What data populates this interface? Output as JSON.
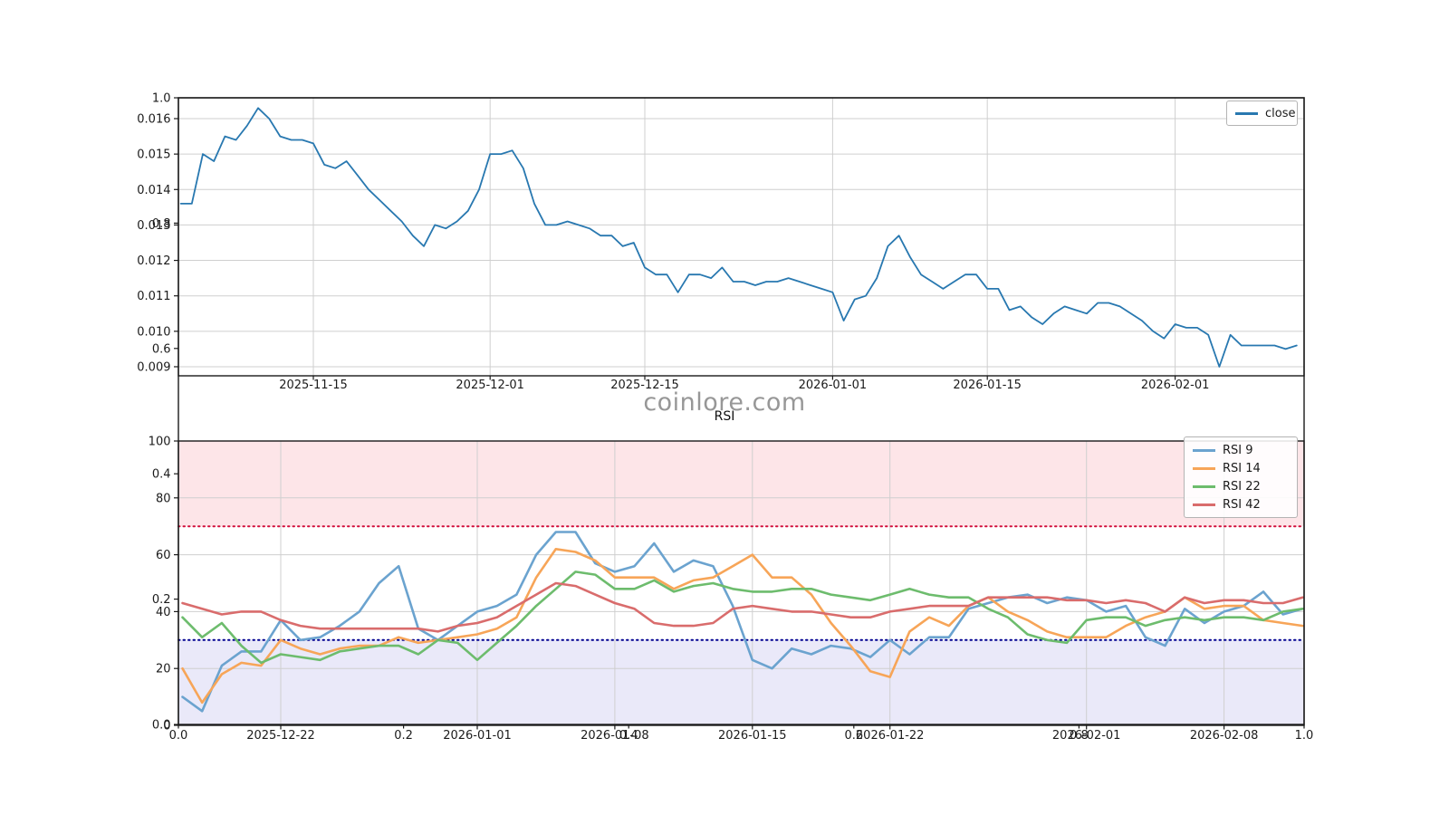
{
  "watermark": "coinlore.com",
  "rsi_title": "RSI",
  "overlay_axis": {
    "y_tick_labels": [
      "1.0",
      "0.8",
      "0.6",
      "0.4",
      "0.2",
      "0.0"
    ],
    "x_tick_labels": [
      "0.0",
      "0.2",
      "0.4",
      "0.6",
      "0.8",
      "1.0"
    ]
  },
  "colors": {
    "close_line": "#2878b0",
    "rsi9_line": "#6ba3cf",
    "rsi14_line": "#f7a558",
    "rsi22_line": "#6dbc6d",
    "rsi42_line": "#d96c6c",
    "overbought_band": "rgba(240,70,90,0.14)",
    "oversold_band": "rgba(90,85,210,0.13)",
    "overbought_dotted_line": "#d2103c",
    "oversold_dotted_line": "#000090",
    "gridline": "#cfcfcf",
    "spine": "#1a1a1a",
    "tick_text": "#1b1b1b"
  },
  "chart_data": [
    {
      "type": "line",
      "panel": "price",
      "title": "",
      "legend_position": "upper right",
      "grid": true,
      "start_date": "2025-11-03",
      "x_tick_labels": [
        "2025-11-15",
        "2025-12-01",
        "2025-12-15",
        "2026-01-01",
        "2026-01-15",
        "2026-02-01"
      ],
      "y_ticks": [
        {
          "value": 0.016,
          "label": "0.016"
        },
        {
          "value": 0.015,
          "label": "0.015"
        },
        {
          "value": 0.014,
          "label": "0.014"
        },
        {
          "value": 0.013,
          "label": "0.013"
        },
        {
          "value": 0.012,
          "label": "0.012"
        },
        {
          "value": 0.011,
          "label": "0.011"
        },
        {
          "value": 0.01,
          "label": "0.010"
        },
        {
          "value": 0.009,
          "label": "0.009"
        }
      ],
      "ylim": [
        0.00875,
        0.01659
      ],
      "series": [
        {
          "name": "close",
          "color": "#2878b0",
          "width": 1.8,
          "values": [
            0.0136,
            0.0136,
            0.015,
            0.0148,
            0.0155,
            0.0154,
            0.0158,
            0.0163,
            0.016,
            0.0155,
            0.0154,
            0.0154,
            0.0153,
            0.0147,
            0.0146,
            0.0148,
            0.0144,
            0.014,
            0.0137,
            0.0134,
            0.0131,
            0.0127,
            0.0124,
            0.013,
            0.0129,
            0.0131,
            0.0134,
            0.014,
            0.015,
            0.015,
            0.0151,
            0.0146,
            0.0136,
            0.013,
            0.013,
            0.0131,
            0.013,
            0.0129,
            0.0127,
            0.0127,
            0.0124,
            0.0125,
            0.0118,
            0.0116,
            0.0116,
            0.0111,
            0.0116,
            0.0116,
            0.0115,
            0.0118,
            0.0114,
            0.0114,
            0.0113,
            0.0114,
            0.0114,
            0.0115,
            0.0114,
            0.0113,
            0.0112,
            0.0111,
            0.0103,
            0.0109,
            0.011,
            0.0115,
            0.0124,
            0.0127,
            0.0121,
            0.0116,
            0.0114,
            0.0112,
            0.0114,
            0.0116,
            0.0116,
            0.0112,
            0.0112,
            0.0106,
            0.0107,
            0.0104,
            0.0102,
            0.0105,
            0.0107,
            0.0106,
            0.0105,
            0.0108,
            0.0108,
            0.0107,
            0.0105,
            0.0103,
            0.01,
            0.0098,
            0.0102,
            0.0101,
            0.0101,
            0.0099,
            0.009,
            0.0099,
            0.0096,
            0.0096,
            0.0096,
            0.0096,
            0.0095,
            0.0096
          ]
        }
      ]
    },
    {
      "type": "line",
      "panel": "rsi",
      "title": "RSI",
      "legend_position": "upper right",
      "grid": true,
      "start_date": "2025-12-17",
      "x_tick_labels": [
        "2025-12-22",
        "2026-01-01",
        "2026-01-08",
        "2026-01-15",
        "2026-01-22",
        "2026-02-01",
        "2026-02-08"
      ],
      "y_ticks": [
        {
          "value": 100,
          "label": "100"
        },
        {
          "value": 80,
          "label": "80"
        },
        {
          "value": 60,
          "label": "60"
        },
        {
          "value": 40,
          "label": "40"
        },
        {
          "value": 20,
          "label": "20"
        },
        {
          "value": 0,
          "label": "0"
        }
      ],
      "ylim": [
        0,
        100
      ],
      "thresholds": {
        "overbought": 70,
        "oversold": 30
      },
      "series": [
        {
          "name": "RSI 9",
          "color": "#6ba3cf",
          "width": 2.6,
          "values": [
            10,
            5,
            21,
            26,
            26,
            37,
            30,
            31,
            35,
            40,
            50,
            56,
            34,
            30,
            35,
            40,
            42,
            46,
            60,
            68,
            68,
            57,
            54,
            56,
            64,
            54,
            58,
            56,
            42,
            23,
            20,
            27,
            25,
            28,
            27,
            24,
            30,
            25,
            31,
            31,
            41,
            43,
            45,
            46,
            43,
            45,
            44,
            40,
            42,
            31,
            28,
            41,
            36,
            40,
            42,
            47,
            39,
            41
          ]
        },
        {
          "name": "RSI 14",
          "color": "#f7a558",
          "width": 2.6,
          "values": [
            20,
            8,
            18,
            22,
            21,
            30,
            27,
            25,
            27,
            28,
            28,
            31,
            29,
            30,
            31,
            32,
            34,
            38,
            52,
            62,
            61,
            58,
            52,
            52,
            52,
            48,
            51,
            52,
            56,
            60,
            52,
            52,
            46,
            36,
            28,
            19,
            17,
            33,
            38,
            35,
            42,
            45,
            40,
            37,
            33,
            31,
            31,
            31,
            35,
            38,
            40,
            45,
            41,
            42,
            42,
            37,
            36,
            35
          ]
        },
        {
          "name": "RSI 22",
          "color": "#6dbc6d",
          "width": 2.6,
          "values": [
            38,
            31,
            36,
            28,
            22,
            25,
            24,
            23,
            26,
            27,
            28,
            28,
            25,
            30,
            29,
            23,
            29,
            35,
            42,
            48,
            54,
            53,
            48,
            48,
            51,
            47,
            49,
            50,
            48,
            47,
            47,
            48,
            48,
            46,
            45,
            44,
            46,
            48,
            46,
            45,
            45,
            41,
            38,
            32,
            30,
            29,
            37,
            38,
            38,
            35,
            37,
            38,
            37,
            38,
            38,
            37,
            40,
            41
          ]
        },
        {
          "name": "RSI 42",
          "color": "#d96c6c",
          "width": 2.6,
          "values": [
            43,
            41,
            39,
            40,
            40,
            37,
            35,
            34,
            34,
            34,
            34,
            34,
            34,
            33,
            35,
            36,
            38,
            42,
            46,
            50,
            49,
            46,
            43,
            41,
            36,
            35,
            35,
            36,
            41,
            42,
            41,
            40,
            40,
            39,
            38,
            38,
            40,
            41,
            42,
            42,
            42,
            45,
            45,
            45,
            45,
            44,
            44,
            43,
            44,
            43,
            40,
            45,
            43,
            44,
            44,
            43,
            43,
            45
          ]
        }
      ]
    }
  ]
}
